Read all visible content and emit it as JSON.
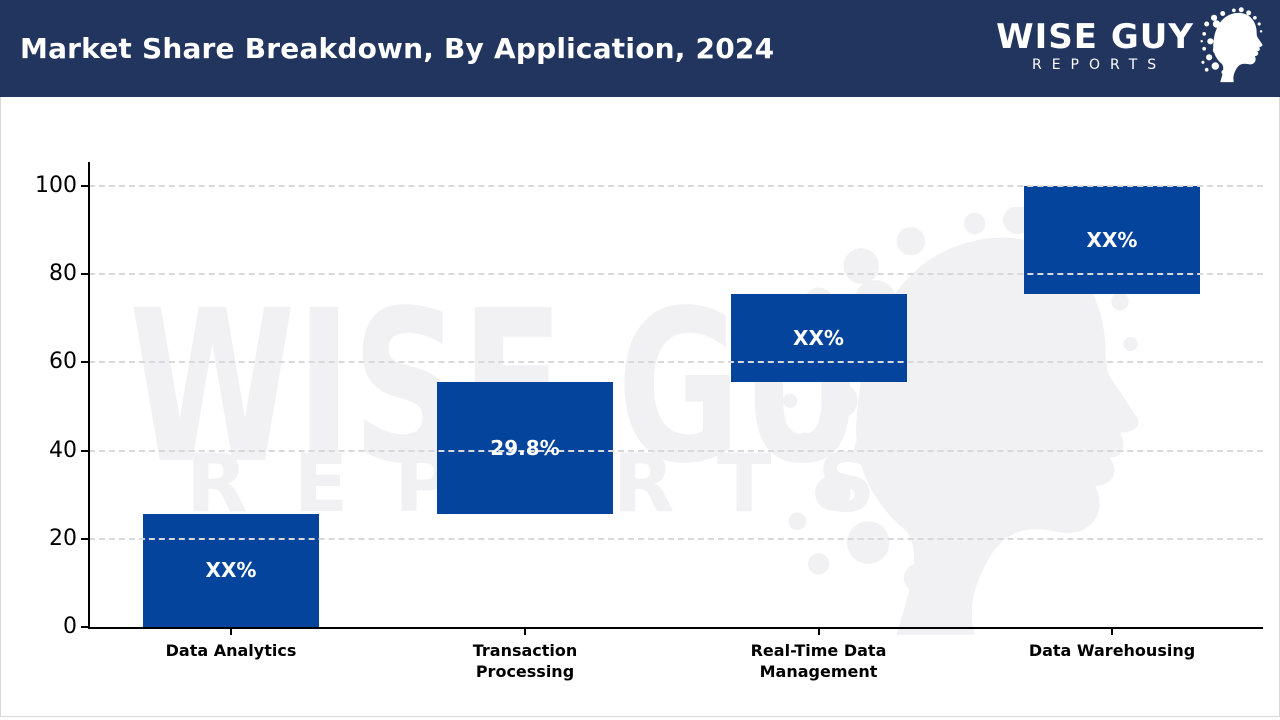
{
  "header": {
    "title": "Market Share Breakdown, By Application, 2024",
    "logo": {
      "line1": "WISE GUY",
      "line2": "REPORTS"
    }
  },
  "watermark": {
    "line1": "WISE GUY",
    "line2": "REPORTS"
  },
  "colors": {
    "header_bg": "#21355e",
    "bar": "#05449c",
    "gridline": "#d9d9d9",
    "axis": "#000000",
    "value_label": "#ffffff",
    "watermark": "#f1f1f3"
  },
  "chart_data": {
    "type": "bar",
    "subtype": "waterfall",
    "title": "Market Share Breakdown, By Application, 2024",
    "categories": [
      "Data Analytics",
      "Transaction Processing",
      "Real-Time Data Management",
      "Data Warehousing"
    ],
    "category_lines": [
      [
        "Data Analytics"
      ],
      [
        "Transaction",
        "Processing"
      ],
      [
        "Real-Time Data",
        "Management"
      ],
      [
        "Data Warehousing"
      ]
    ],
    "segments": [
      {
        "category": "Data Analytics",
        "start": 0,
        "end": 25.7,
        "value_label": "XX%"
      },
      {
        "category": "Transaction Processing",
        "start": 25.7,
        "end": 55.5,
        "value_label": "29.8%"
      },
      {
        "category": "Real-Time Data Management",
        "start": 55.5,
        "end": 75.4,
        "value_label": "XX%"
      },
      {
        "category": "Data Warehousing",
        "start": 75.4,
        "end": 99.9,
        "value_label": "XX%"
      }
    ],
    "yticks": [
      0,
      20,
      40,
      60,
      80,
      100
    ],
    "ylim": [
      0,
      100
    ],
    "xlabel": "",
    "ylabel": "",
    "grid": "horizontal dashed, drawn over bars",
    "legend": "none"
  }
}
